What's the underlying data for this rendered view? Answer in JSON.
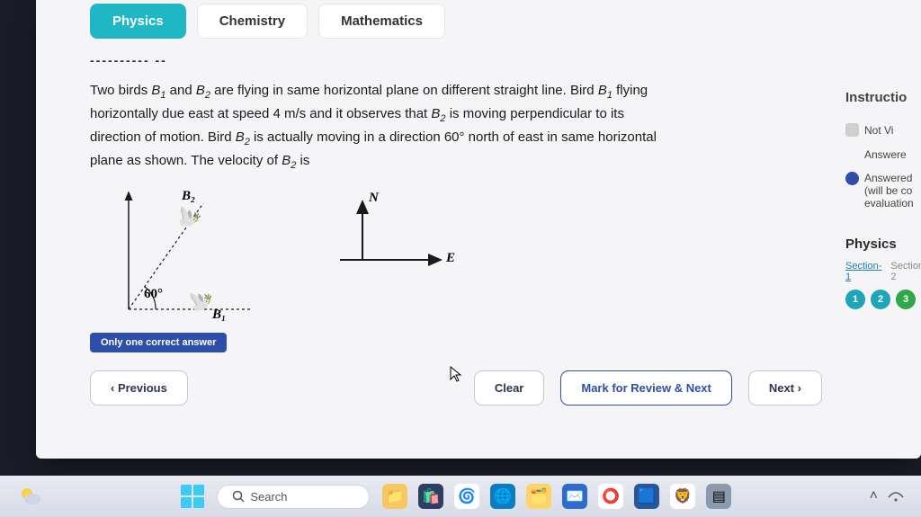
{
  "tabs": {
    "physics": "Physics",
    "chemistry": "Chemistry",
    "mathematics": "Mathematics",
    "active_bg": "#1fb6c5"
  },
  "dash": "----------  --",
  "question": {
    "line1_a": "Two birds ",
    "b1": "B",
    "sub1": "1",
    "line1_b": " and ",
    "b2": "B",
    "sub2": "2",
    "line1_c": " are flying in same horizontal plane on different straight line. Bird ",
    "line1_d": " flying",
    "line2_a": "horizontally due east at speed 4 m/s and it observes that ",
    "line2_b": " is moving perpendicular to its",
    "line3_a": "direction of motion. Bird ",
    "line3_b": " is actually moving in a direction 60° north of east in same horizontal",
    "line4_a": "plane as shown. The velocity of ",
    "line4_b": " is"
  },
  "diagram": {
    "b2_label": "B₂",
    "b1_label": "B₁",
    "angle": "60°",
    "north": "N",
    "east": "E",
    "bird_glyph": "🕊️"
  },
  "badge": {
    "text": "Only one correct answer",
    "bg": "#2e4fa8"
  },
  "nav": {
    "prev": "‹  Previous",
    "clear": "Clear",
    "review": "Mark for Review & Next",
    "next": "Next  ›"
  },
  "right": {
    "title": "Instructio",
    "notvisited": "Not Vi",
    "answered": "Answere",
    "answered_review": "Answered",
    "answered_review2": "(will be co",
    "answered_review3": "evaluation",
    "green": "#2fa84a",
    "blue": "#2e4fa8",
    "subject": "Physics",
    "sect1": "Section-1",
    "sect2": "Section-2",
    "q1_bg": "#1fa5b8",
    "q2_bg": "#1fa5b8",
    "q3_bg": "#2fa84a"
  },
  "taskbar": {
    "search_placeholder": "Search",
    "win_colors": [
      "#3ccbf4",
      "#3ccbf4",
      "#3ccbf4",
      "#3ccbf4"
    ],
    "icons": [
      {
        "name": "files-icon",
        "glyph": "📁",
        "bg": "#f6c765"
      },
      {
        "name": "store-icon",
        "glyph": "🛍️",
        "bg": "#2e3d63"
      },
      {
        "name": "copilot-icon",
        "glyph": "🌀",
        "bg": "#fff"
      },
      {
        "name": "edge-icon",
        "glyph": "🌐",
        "bg": "#0c7cc0"
      },
      {
        "name": "explorer-icon",
        "glyph": "🗂️",
        "bg": "#ffd36b"
      },
      {
        "name": "mail-icon",
        "glyph": "✉️",
        "bg": "#2e6bce"
      },
      {
        "name": "chrome-icon",
        "glyph": "⭕",
        "bg": "#fff"
      },
      {
        "name": "word-icon",
        "glyph": "🟦",
        "bg": "#2a5699"
      },
      {
        "name": "brave-icon",
        "glyph": "🦁",
        "bg": "#fff"
      },
      {
        "name": "app-icon",
        "glyph": "▤",
        "bg": "#8c9aad"
      }
    ]
  }
}
